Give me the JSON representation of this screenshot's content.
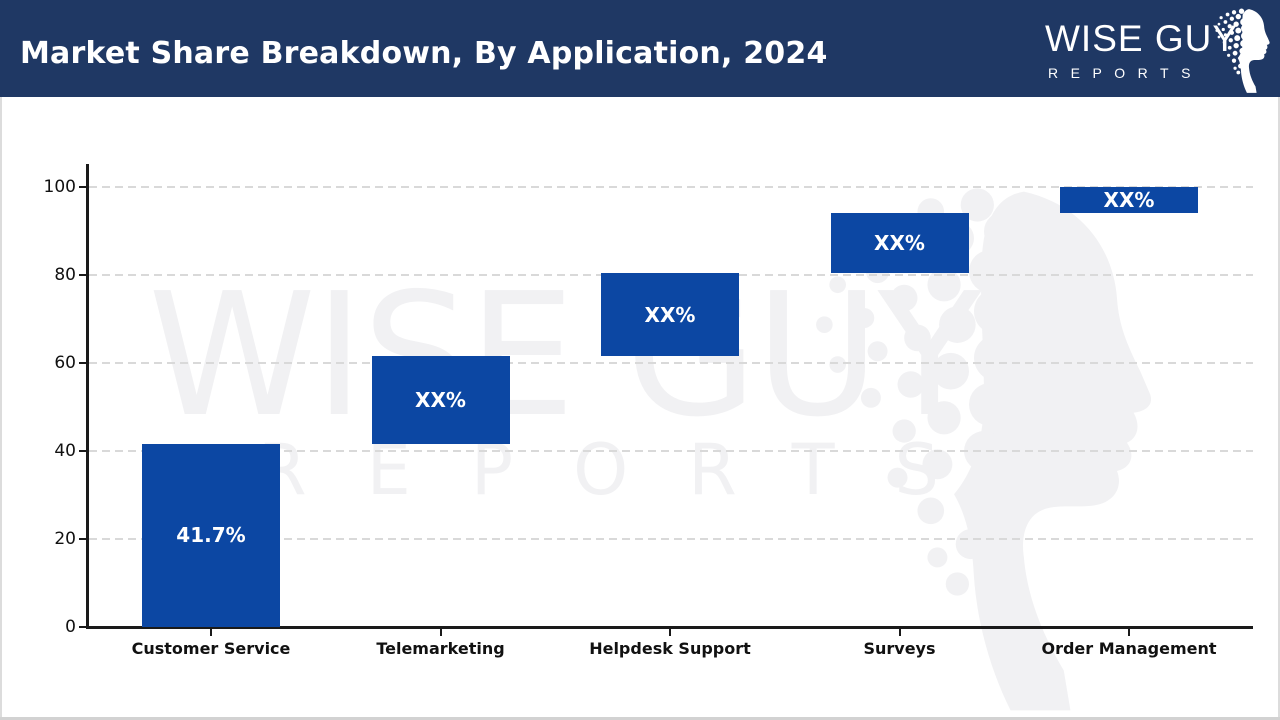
{
  "header": {
    "title": "Market Share Breakdown, By Application, 2024",
    "bg_color": "#1f3864",
    "logo": {
      "line1": "WISE GUY",
      "line2": "REPORTS"
    }
  },
  "watermark": {
    "line1": "WISE GUY",
    "line2": "REPORTS"
  },
  "chart_data": {
    "type": "bar",
    "subtype": "waterfall",
    "title": "Market Share Breakdown, By Application, 2024",
    "categories": [
      "Customer Service",
      "Telemarketing",
      "Helpdesk Support",
      "Surveys",
      "Order Management"
    ],
    "segments": [
      {
        "category": "Customer Service",
        "start": 0,
        "end": 41.7,
        "label": "41.7%"
      },
      {
        "category": "Telemarketing",
        "start": 41.7,
        "end": 61.5,
        "label": "XX%"
      },
      {
        "category": "Helpdesk Support",
        "start": 61.5,
        "end": 80.5,
        "label": "XX%"
      },
      {
        "category": "Surveys",
        "start": 80.5,
        "end": 94.2,
        "label": "XX%"
      },
      {
        "category": "Order Management",
        "start": 94.2,
        "end": 100,
        "label": "XX%"
      }
    ],
    "yticks": [
      0,
      20,
      40,
      60,
      80,
      100
    ],
    "ylim": [
      0,
      100
    ],
    "xlabel": "",
    "ylabel": "",
    "grid": "horizontal-dashed",
    "legend": "none",
    "bar_color": "#0c47a3",
    "bar_label_color": "#ffffff",
    "axis_color": "#1a1a1a",
    "gridline_color": "#d9d9d9"
  }
}
